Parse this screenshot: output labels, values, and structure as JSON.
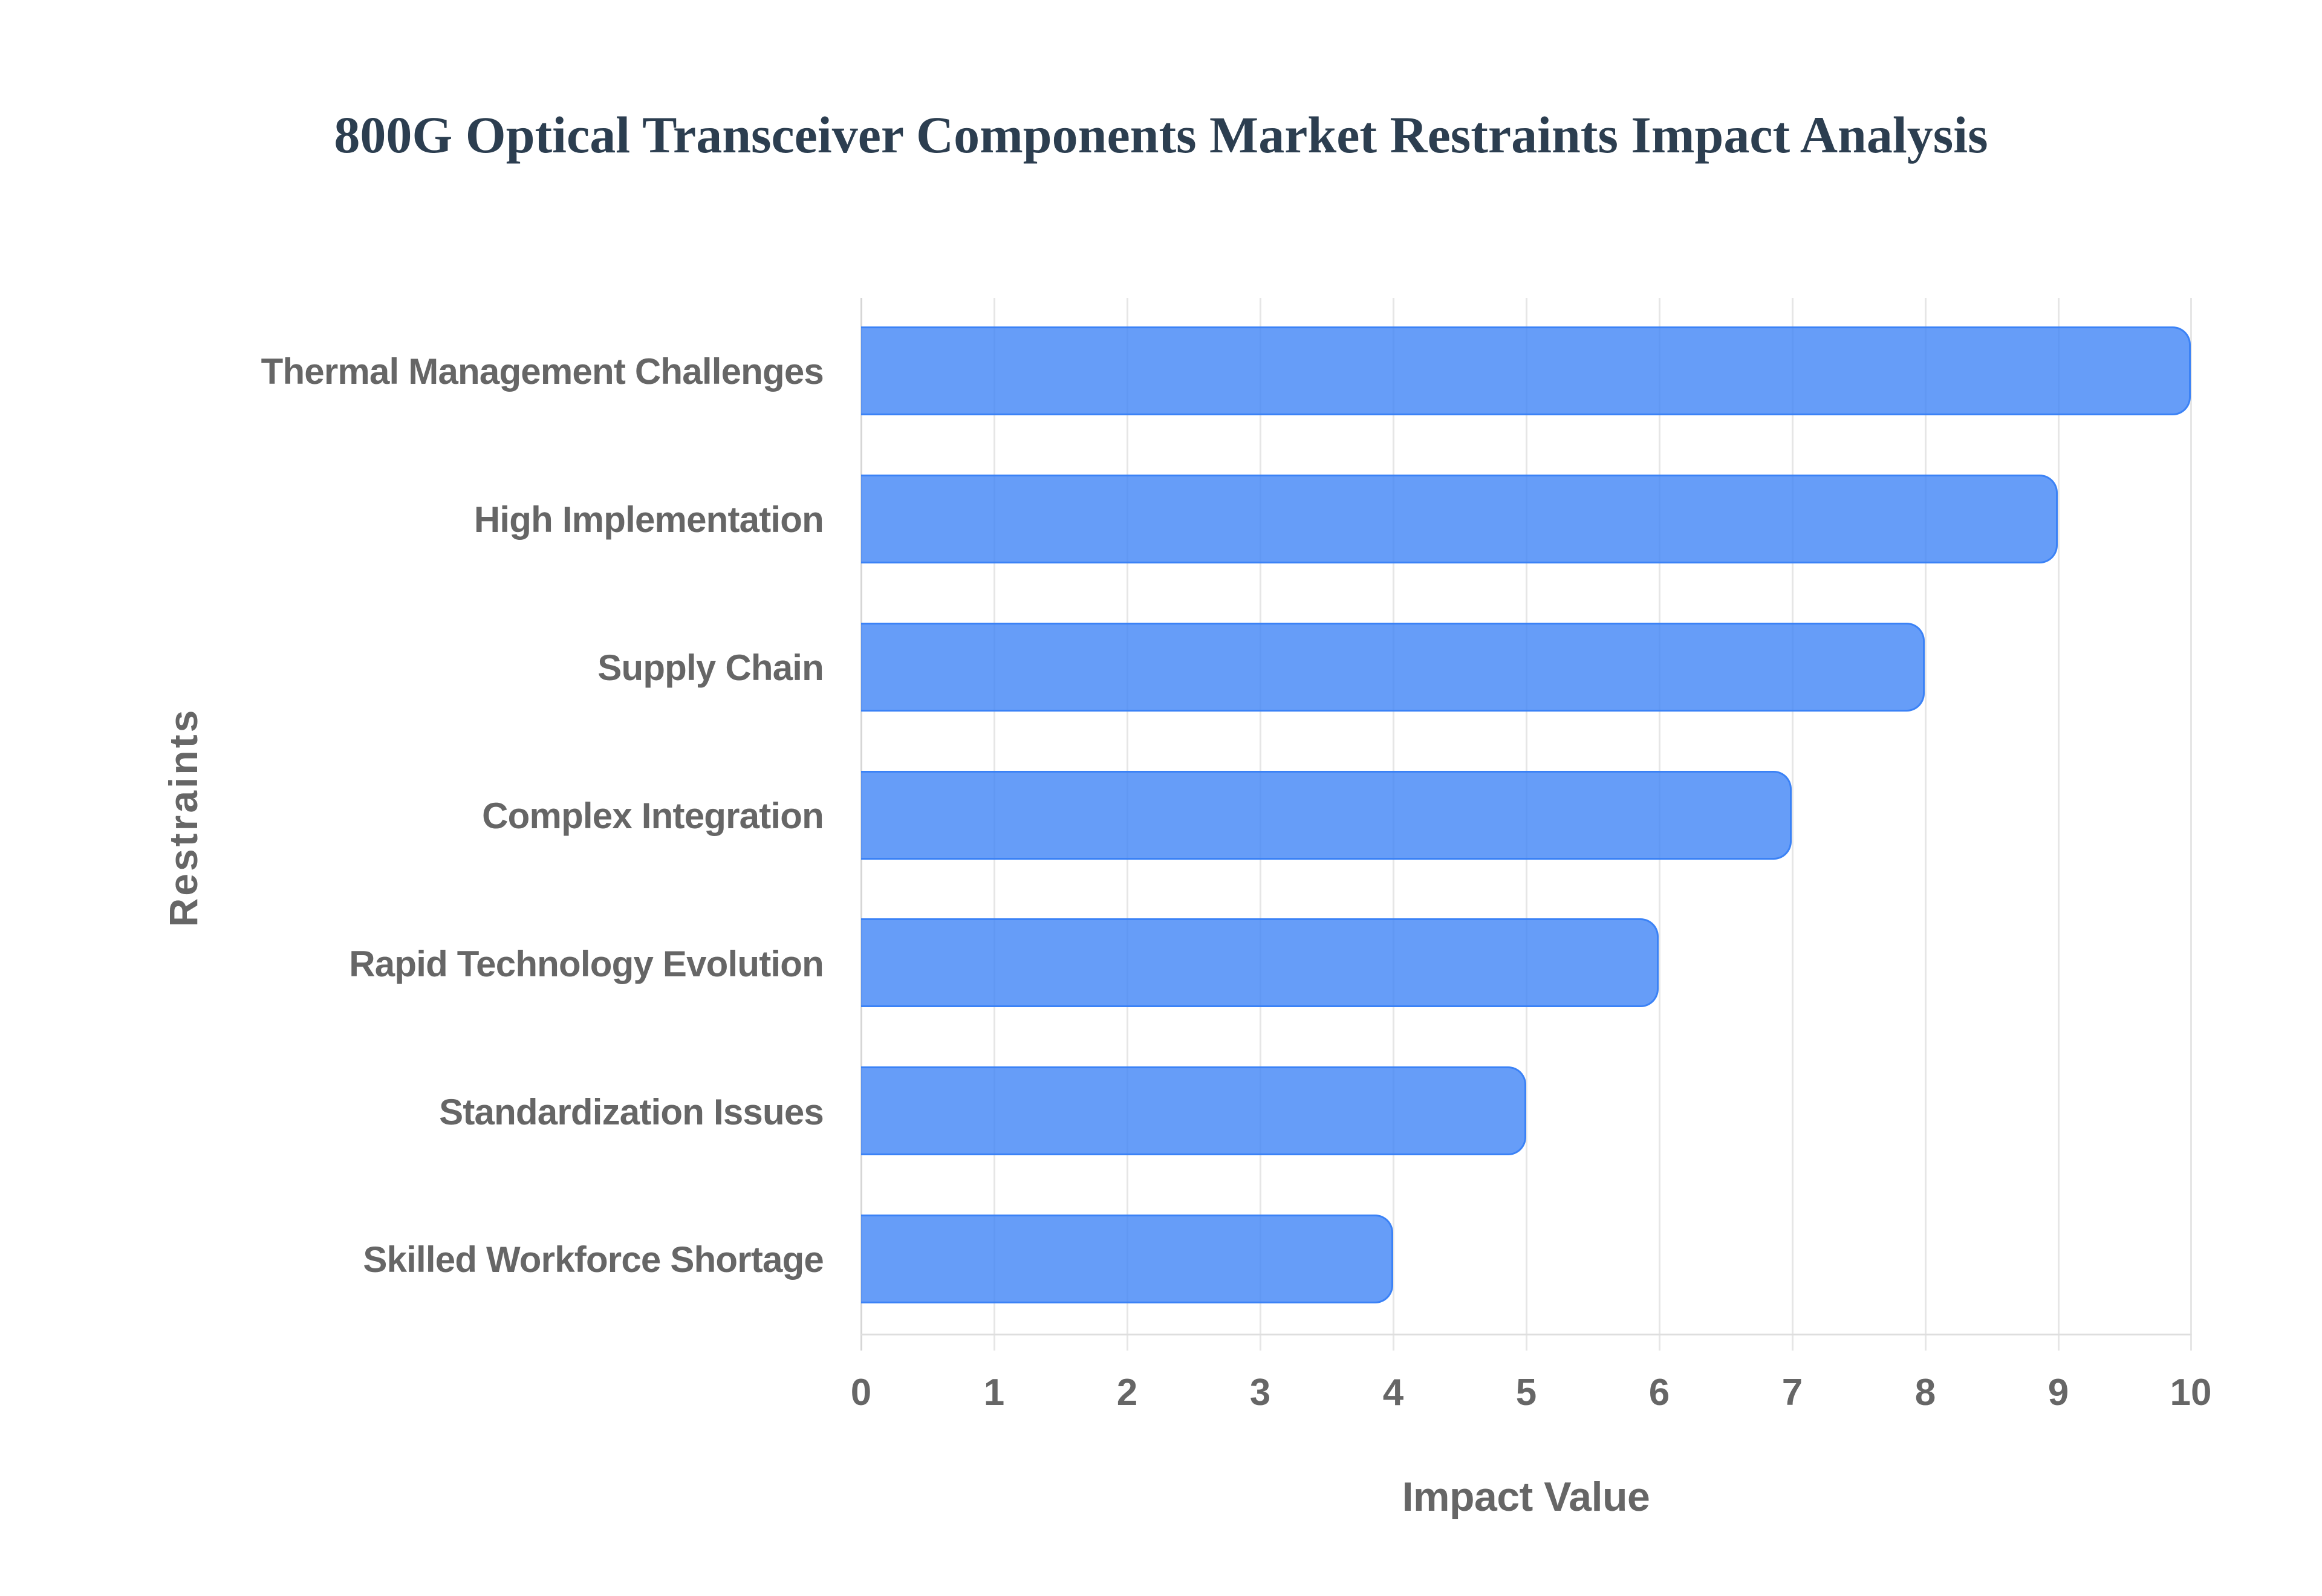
{
  "title": "800G Optical Transceiver Components Market Restraints Impact Analysis",
  "axes": {
    "x_title": "Impact Value",
    "y_title": "Restraints",
    "x_ticks": [
      "0",
      "1",
      "2",
      "3",
      "4",
      "5",
      "6",
      "7",
      "8",
      "9",
      "10"
    ]
  },
  "colors": {
    "bar_fill": "#639BF5",
    "bar_border": "#3B82F6",
    "title": "#2C3E50",
    "axis_text": "#666666",
    "gridline": "#E6E6E6"
  },
  "chart_data": {
    "type": "bar",
    "orientation": "horizontal",
    "title": "800G Optical Transceiver Components Market Restraints Impact Analysis",
    "xlabel": "Impact Value",
    "ylabel": "Restraints",
    "categories": [
      "Thermal Management Challenges",
      "High Implementation",
      "Supply Chain",
      "Complex Integration",
      "Rapid Technology Evolution",
      "Standardization Issues",
      "Skilled Workforce Shortage"
    ],
    "values": [
      10,
      9,
      8,
      7,
      6,
      5,
      4
    ],
    "xlim": [
      0,
      10
    ],
    "x_ticks": [
      0,
      1,
      2,
      3,
      4,
      5,
      6,
      7,
      8,
      9,
      10
    ],
    "grid": {
      "vertical": true,
      "horizontal": false
    },
    "legend": null
  }
}
